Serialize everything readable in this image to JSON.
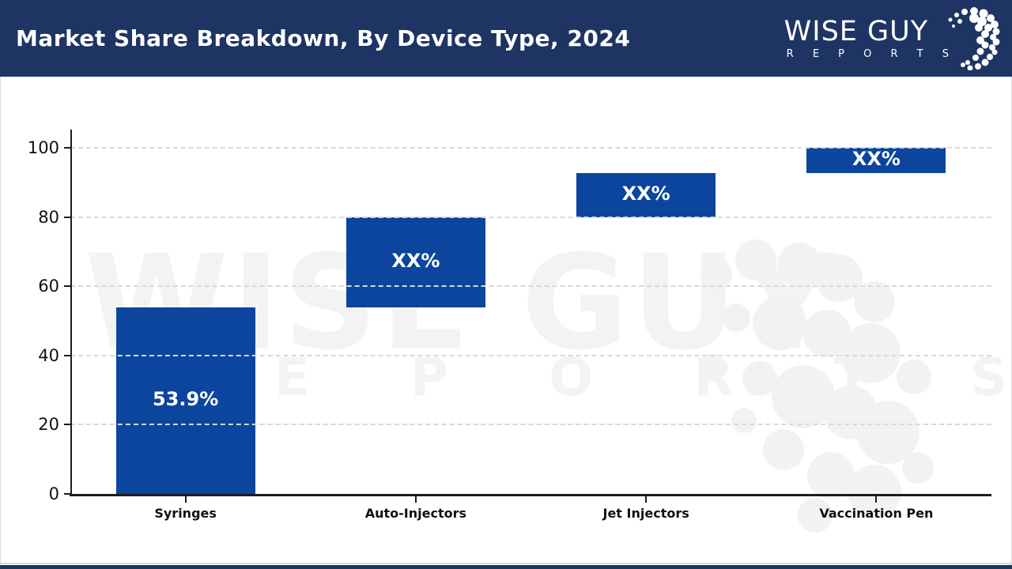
{
  "header": {
    "title": "Market Share Breakdown, By Device Type, 2024",
    "logo_line1": "WISE GUY",
    "logo_line2": "R E P O R T S"
  },
  "watermark": {
    "line1": "WISE GUY",
    "line2": "R E P O R T S"
  },
  "colors": {
    "header_bg": "#1e3462",
    "bar": "#0b459d",
    "grid": "#d9d9d9",
    "axis": "#1c1c1c",
    "bar_label": "#ffffff",
    "watermark": "#f3f3f3"
  },
  "chart_data": {
    "type": "bar",
    "subtype": "waterfall",
    "title": "Market Share Breakdown, By Device Type, 2024",
    "categories": [
      "Syringes",
      "Auto-Injectors",
      "Jet Injectors",
      "Vaccination Pen"
    ],
    "segments": [
      {
        "category": "Syringes",
        "start": 0,
        "end": 53.9,
        "label": "53.9%"
      },
      {
        "category": "Auto-Injectors",
        "start": 53.9,
        "end": 79.9,
        "label": "XX%"
      },
      {
        "category": "Jet Injectors",
        "start": 79.9,
        "end": 92.7,
        "label": "XX%"
      },
      {
        "category": "Vaccination Pen",
        "start": 92.7,
        "end": 100,
        "label": "XX%"
      }
    ],
    "yticks": [
      0,
      20,
      40,
      60,
      80,
      100
    ],
    "ylim": [
      0,
      100
    ],
    "xlabel": "",
    "ylabel": "",
    "grid": "horizontal-dashed",
    "legend": "none"
  }
}
